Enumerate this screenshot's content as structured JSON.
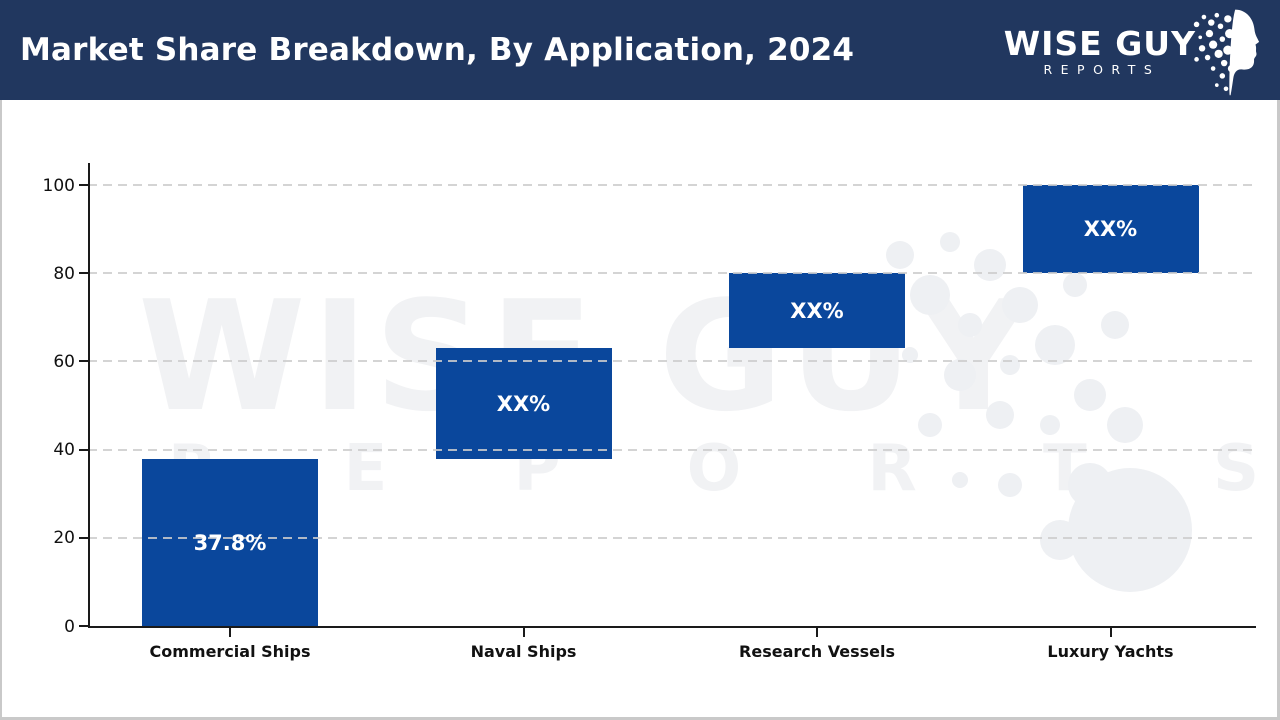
{
  "page": {
    "title": "Market Share Breakdown, By Application, 2024"
  },
  "logo": {
    "line1": "WISE GUY",
    "line2": "REPORTS"
  },
  "watermark": {
    "line1": "WISE GUY",
    "line2": "R E P O R T S"
  },
  "colors": {
    "header_bg": "#21375f",
    "bar": "#0a479c",
    "title_text": "#ffffff",
    "grid": "#cdcdcd",
    "axis": "#1a1a1a",
    "watermark": "#f1f2f4",
    "page_edge": "#c9c9c9"
  },
  "chart_data": {
    "type": "bar",
    "subtype": "waterfall",
    "title": "Market Share Breakdown, By Application, 2024",
    "categories": [
      "Commercial Ships",
      "Naval Ships",
      "Research Vessels",
      "Luxury Yachts"
    ],
    "segments": [
      {
        "category": "Commercial Ships",
        "start": 0,
        "end": 37.8,
        "label": "37.8%"
      },
      {
        "category": "Naval Ships",
        "start": 37.8,
        "end": 63,
        "label": "XX%"
      },
      {
        "category": "Research Vessels",
        "start": 63,
        "end": 80,
        "label": "XX%"
      },
      {
        "category": "Luxury Yachts",
        "start": 80,
        "end": 100,
        "label": "XX%"
      }
    ],
    "ylim": [
      0,
      100
    ],
    "yticks": [
      0,
      20,
      40,
      60,
      80,
      100
    ],
    "xlabel": "",
    "ylabel": "",
    "grid": "horizontal-dashed",
    "legend": "none",
    "bar_color": "#0a479c",
    "value_label_color": "#ffffff"
  }
}
